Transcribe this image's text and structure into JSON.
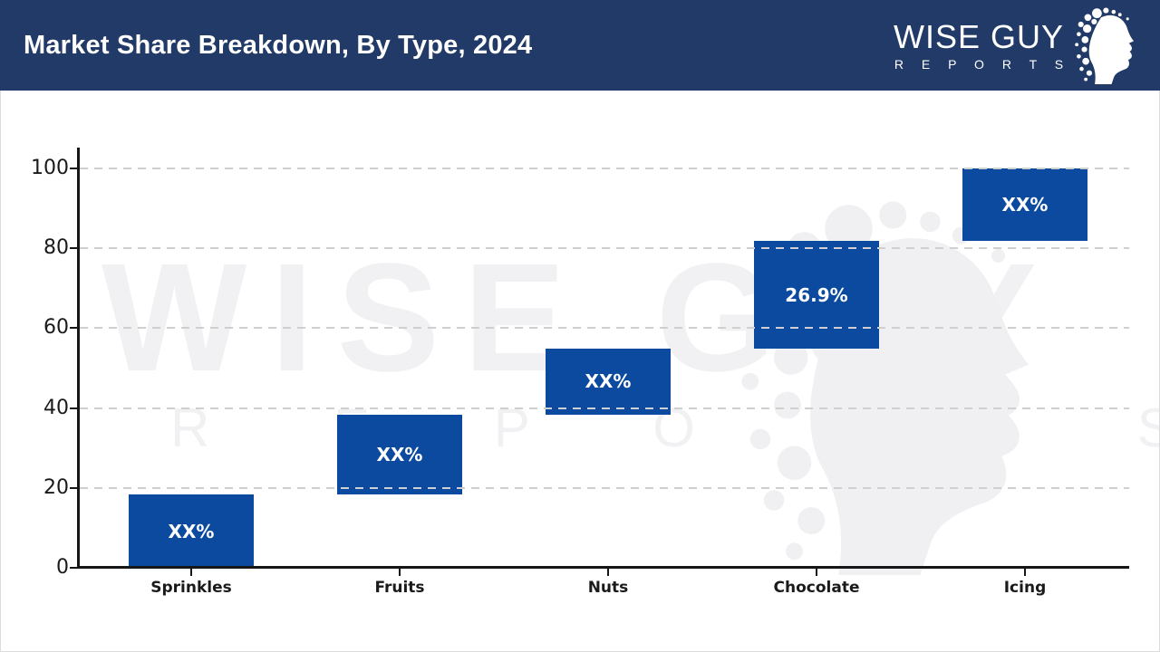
{
  "header": {
    "title": "Market Share Breakdown, By Type, 2024",
    "logo": {
      "line1": "WISE GUY",
      "line2": "R E P O R T S"
    }
  },
  "watermark": {
    "line1": "WISE GUY",
    "line2": "R E P O R T S"
  },
  "colors": {
    "header_bg": "#223a67",
    "bar": "#0b4a9f",
    "bar_label": "#ffffff",
    "gridline": "#cfcfcf",
    "axis": "#161616",
    "watermark": "#f1f1f3"
  },
  "chart_data": {
    "type": "bar",
    "subtype": "waterfall",
    "title": "Market Share Breakdown, By Type, 2024",
    "xlabel": "",
    "ylabel": "",
    "categories": [
      "Sprinkles",
      "Fruits",
      "Nuts",
      "Chocolate",
      "Icing"
    ],
    "segments": [
      {
        "category": "Sprinkles",
        "start": 0,
        "end": 18.3,
        "value": 18.3,
        "label": "XX%"
      },
      {
        "category": "Fruits",
        "start": 18.3,
        "end": 38.3,
        "value": 20.0,
        "label": "XX%"
      },
      {
        "category": "Nuts",
        "start": 38.3,
        "end": 54.9,
        "value": 16.6,
        "label": "XX%"
      },
      {
        "category": "Chocolate",
        "start": 54.9,
        "end": 81.8,
        "value": 26.9,
        "label": "26.9%"
      },
      {
        "category": "Icing",
        "start": 81.8,
        "end": 100.0,
        "value": 18.2,
        "label": "XX%"
      }
    ],
    "yticks": [
      0,
      20,
      40,
      60,
      80,
      100
    ],
    "ylim": [
      0,
      105
    ],
    "grid": "horizontal-dashed",
    "legend": "none"
  }
}
